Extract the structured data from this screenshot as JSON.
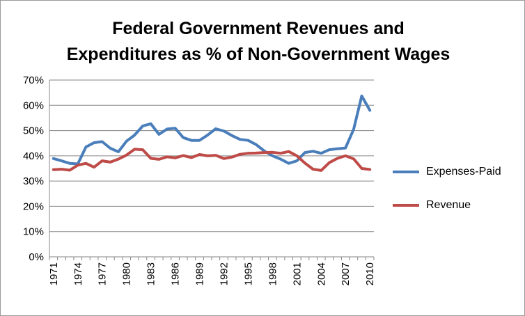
{
  "chart_data": {
    "type": "line",
    "title_lines": [
      "Federal Government Revenues and",
      "Expenditures as % of Non-Government Wages"
    ],
    "xlabel": "",
    "ylabel": "",
    "ylim": [
      0,
      70
    ],
    "y_ticks": [
      "0%",
      "10%",
      "20%",
      "30%",
      "40%",
      "50%",
      "60%",
      "70%"
    ],
    "y_tick_values": [
      0,
      10,
      20,
      30,
      40,
      50,
      60,
      70
    ],
    "x": [
      1971,
      1972,
      1973,
      1974,
      1975,
      1976,
      1977,
      1978,
      1979,
      1980,
      1981,
      1982,
      1983,
      1984,
      1985,
      1986,
      1987,
      1988,
      1989,
      1990,
      1991,
      1992,
      1993,
      1994,
      1995,
      1996,
      1997,
      1998,
      1999,
      2000,
      2001,
      2002,
      2003,
      2004,
      2005,
      2006,
      2007,
      2008,
      2009,
      2010
    ],
    "x_tick_labels": [
      "1971",
      "1974",
      "1977",
      "1980",
      "1983",
      "1986",
      "1989",
      "1992",
      "1995",
      "1998",
      "2001",
      "2004",
      "2007",
      "2010"
    ],
    "grid": true,
    "legend_position": "right",
    "series": [
      {
        "name": "Expenses-Paid",
        "color": "#4a7ebb",
        "values": [
          38.9,
          38.0,
          37.0,
          36.8,
          43.5,
          45.2,
          45.6,
          43.0,
          41.6,
          45.8,
          48.2,
          51.8,
          52.7,
          48.5,
          50.6,
          50.9,
          47.2,
          46.1,
          46.1,
          48.2,
          50.7,
          49.8,
          48.0,
          46.5,
          46.1,
          44.4,
          41.9,
          40.0,
          38.7,
          37.0,
          38.0,
          41.3,
          41.8,
          41.0,
          42.4,
          42.8,
          43.1,
          50.5,
          63.7,
          58.0
        ]
      },
      {
        "name": "Revenue",
        "color": "#be4b48",
        "values": [
          34.5,
          34.7,
          34.3,
          36.3,
          37.0,
          35.5,
          38.0,
          37.5,
          38.7,
          40.3,
          42.6,
          42.4,
          39.0,
          38.6,
          39.6,
          39.2,
          40.1,
          39.3,
          40.5,
          40.0,
          40.2,
          38.9,
          39.5,
          40.6,
          41.0,
          41.1,
          41.3,
          41.4,
          41.0,
          41.7,
          40.0,
          37.1,
          34.7,
          34.2,
          37.3,
          39.0,
          40.0,
          38.8,
          35.0,
          34.6
        ]
      }
    ]
  }
}
